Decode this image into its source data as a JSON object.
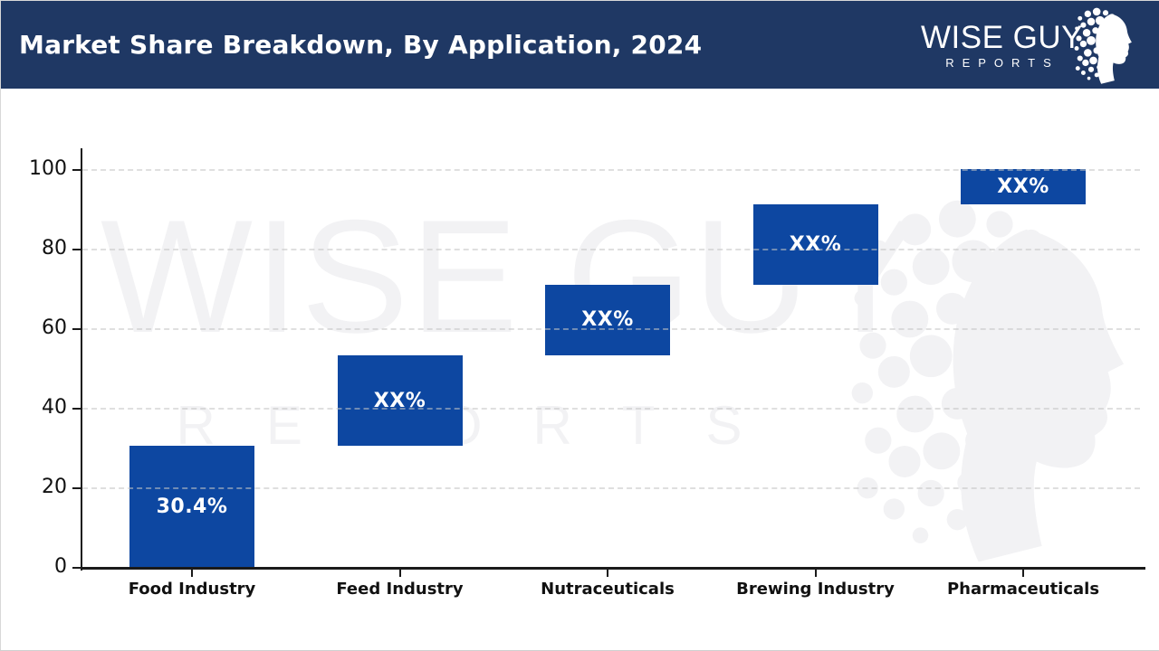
{
  "header": {
    "title": "Market Share Breakdown, By Application, 2024",
    "bg_color": "#1f3864",
    "logo": {
      "line1": "WISE GUY",
      "line2": "REPORTS"
    }
  },
  "watermark": {
    "line1": "WISE GUY",
    "line2": "REPORTS"
  },
  "chart_data": {
    "type": "bar",
    "subtype": "waterfall-floating-bars",
    "title": "Market Share Breakdown, By Application, 2024",
    "categories": [
      "Food Industry",
      "Feed Industry",
      "Nutraceuticals",
      "Brewing Industry",
      "Pharmaceuticals"
    ],
    "bars": [
      {
        "category": "Food Industry",
        "start": 0,
        "end": 30.4,
        "label": "30.4%"
      },
      {
        "category": "Feed Industry",
        "start": 30.4,
        "end": 53.2,
        "label": "XX%"
      },
      {
        "category": "Nutraceuticals",
        "start": 53.2,
        "end": 70.9,
        "label": "XX%"
      },
      {
        "category": "Brewing Industry",
        "start": 70.9,
        "end": 91.1,
        "label": "XX%"
      },
      {
        "category": "Pharmaceuticals",
        "start": 91.1,
        "end": 100,
        "label": "XX%"
      }
    ],
    "yticks": [
      0,
      20,
      40,
      60,
      80,
      100
    ],
    "ylim": [
      0,
      105
    ],
    "xlabel": "",
    "ylabel": "",
    "grid": "horizontal-dashed",
    "legend": "none",
    "bar_color": "#0d47a1",
    "bar_label_color": "#ffffff",
    "axis_color": "#1a1a1a"
  }
}
